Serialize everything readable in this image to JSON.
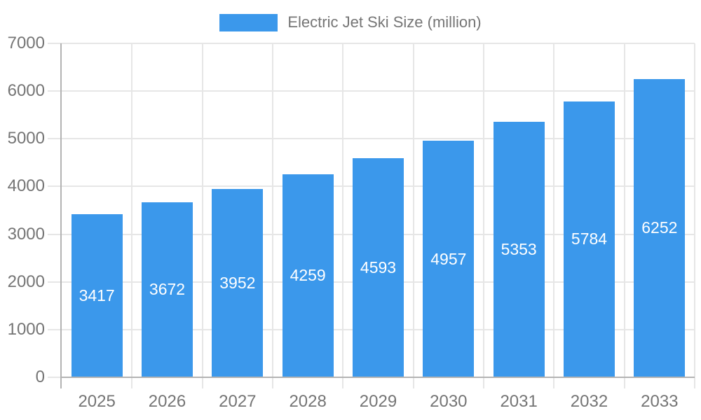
{
  "chart_data": {
    "type": "bar",
    "title": "Electric Jet Ski Size (million)",
    "legend_position": "top-center",
    "categories": [
      "2025",
      "2026",
      "2027",
      "2028",
      "2029",
      "2030",
      "2031",
      "2032",
      "2033"
    ],
    "series": [
      {
        "name": "Electric Jet Ski Size (million)",
        "values": [
          3417,
          3672,
          3952,
          4259,
          4593,
          4957,
          5353,
          5784,
          6252
        ]
      }
    ],
    "data_labels": [
      "3417",
      "3672",
      "3952",
      "4259",
      "4593",
      "4957",
      "5353",
      "5784",
      "6252"
    ],
    "xlabel": "",
    "ylabel": "",
    "ylim": [
      0,
      7000
    ],
    "yticks": [
      0,
      1000,
      2000,
      3000,
      4000,
      5000,
      6000,
      7000
    ],
    "grid": true
  },
  "colors": {
    "bar": "#3B98EB",
    "data_label": "#FFFFFF",
    "axis_label": "#757575",
    "grid": "#E6E6E6",
    "axis_line": "#B3B3B3",
    "background": "#FFFFFF"
  }
}
